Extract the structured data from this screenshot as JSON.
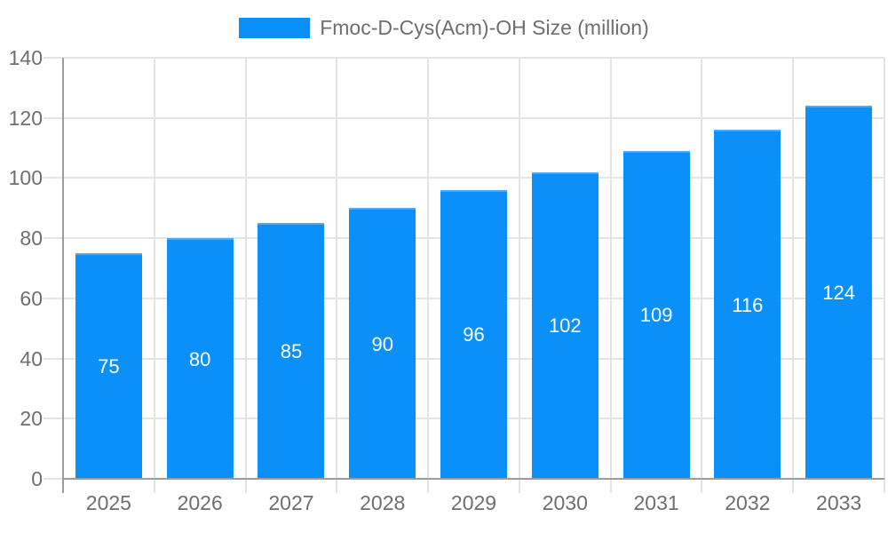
{
  "chart_data": {
    "type": "bar",
    "title": "",
    "legend": "Fmoc-D-Cys(Acm)-OH Size (million)",
    "legend_position": "top-center",
    "categories": [
      "2025",
      "2026",
      "2027",
      "2028",
      "2029",
      "2030",
      "2031",
      "2032",
      "2033"
    ],
    "series": [
      {
        "name": "Fmoc-D-Cys(Acm)-OH Size (million)",
        "values": [
          75,
          80,
          85,
          90,
          96,
          102,
          109,
          116,
          124
        ]
      }
    ],
    "bar_labels": [
      "75",
      "80",
      "85",
      "90",
      "96",
      "102",
      "109",
      "116",
      "124"
    ],
    "xlabel": "",
    "ylabel": "",
    "ylim": [
      0,
      140
    ],
    "yticks": [
      0,
      20,
      40,
      60,
      80,
      100,
      120,
      140
    ],
    "grid": true,
    "colors": {
      "bar": "#0a90f8",
      "bar_border": "#4fa8f2",
      "bar_label": "#ffffff",
      "grid": "#e4e4e4",
      "axis": "#9c9c9c",
      "text": "#6e6e6e",
      "background": "#ffffff"
    }
  }
}
